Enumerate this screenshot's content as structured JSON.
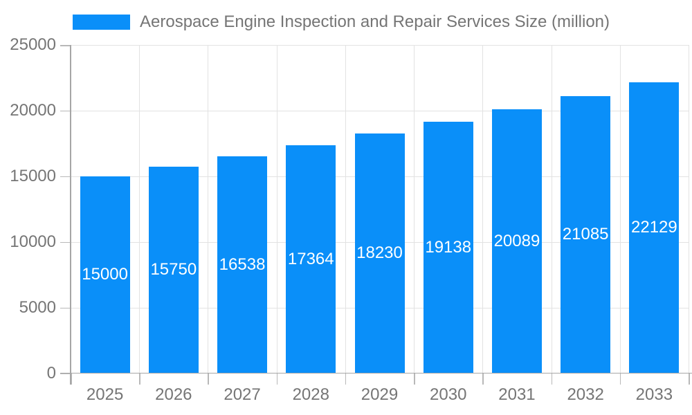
{
  "chart_data": {
    "type": "bar",
    "title": "Aerospace Engine Inspection and Repair Services Size (million)",
    "series_name": "Aerospace Engine Inspection and Repair Services Size (million)",
    "categories": [
      "2025",
      "2026",
      "2027",
      "2028",
      "2029",
      "2030",
      "2031",
      "2032",
      "2033"
    ],
    "values": [
      15000,
      15750,
      16538,
      17364,
      18230,
      19138,
      20089,
      21085,
      22129
    ],
    "value_labels": [
      "15000",
      "15750",
      "16538",
      "17364",
      "18230",
      "19138",
      "20089",
      "21085",
      "22129"
    ],
    "xlabel": "",
    "ylabel": "",
    "ylim": [
      0,
      25000
    ],
    "yticks": [
      0,
      5000,
      10000,
      15000,
      20000,
      25000
    ],
    "ytick_labels": [
      "0",
      "5000",
      "10000",
      "15000",
      "20000",
      "25000"
    ],
    "grid": true,
    "legend_position": "top-left",
    "colors": {
      "bar": "#0a8ff9",
      "value_label": "#ffffff",
      "grid": "#e2e2e2",
      "axis": "#a6a6a6",
      "tick": "#b8b8b8",
      "text": "#757575",
      "background": "#ffffff"
    }
  }
}
